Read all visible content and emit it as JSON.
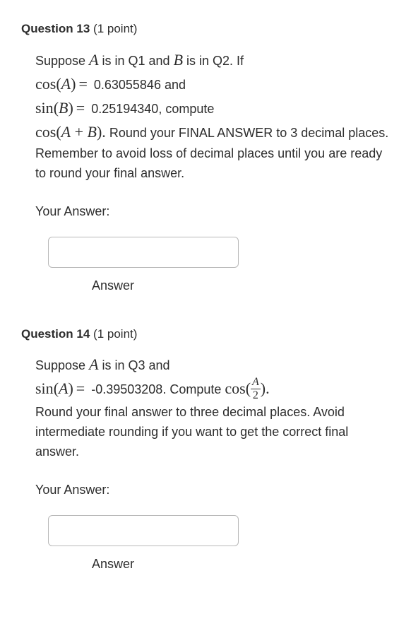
{
  "q13": {
    "header_bold": "Question 13",
    "header_point": "(1 point)",
    "line1_pre": "Suppose ",
    "varA": "A",
    "line1_mid": " is in Q1 and ",
    "varB": "B",
    "line1_post": " is in Q2. If",
    "fn_cos": "cos",
    "fn_sin": "sin",
    "open": "(",
    "close": ")",
    "eq": "=",
    "val_cosA": " 0.63055846",
    "and_text": " and",
    "val_sinB": " 0.25194340",
    "compute_text": ", compute",
    "plus": " + ",
    "close_dot": ").",
    "tail": " Round your FINAL ANSWER to 3 decimal places. Remember to avoid loss of decimal places until you are ready to round your final answer.",
    "your_answer": "Your Answer:",
    "answer_label": "Answer"
  },
  "q14": {
    "header_bold": "Question 14",
    "header_point": "(1 point)",
    "line1_pre": "Suppose ",
    "varA": "A",
    "line1_post": " is in Q3 and",
    "fn_sin": "sin",
    "fn_cos": "cos",
    "open": "(",
    "close": ")",
    "eq": "=",
    "val_sinA": " -0.39503208",
    "compute_text": ". Compute ",
    "frac_num": "A",
    "frac_den": "2",
    "close_dot": ").",
    "tail": "Round your final answer to three decimal places. Avoid intermediate rounding if you want to get the correct final answer.",
    "your_answer": "Your Answer:",
    "answer_label": "Answer"
  }
}
